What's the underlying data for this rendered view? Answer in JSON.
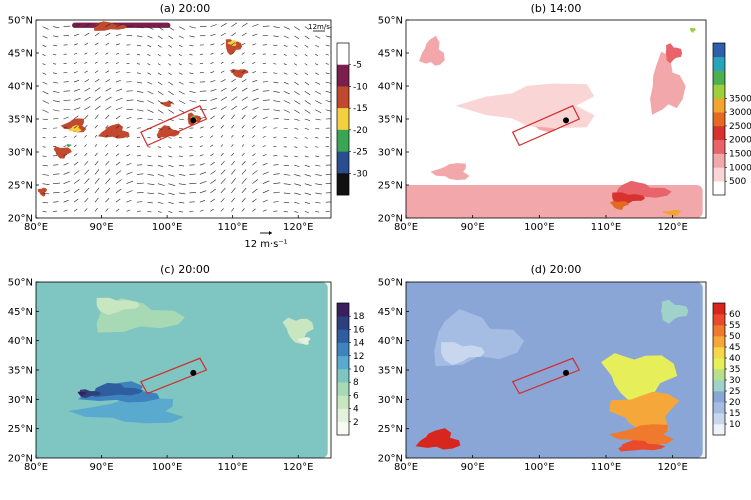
{
  "figure": {
    "panels": [
      {
        "id": "a",
        "title": "(a) 20:00",
        "type": "heatmap",
        "variable_display": "filled contours with wind vectors",
        "colorbar": {
          "ticks": [
            "-5",
            "-10",
            "-15",
            "-20",
            "-25",
            "-30"
          ],
          "colors": [
            "#ffffff",
            "#7a1f4b",
            "#c2492d",
            "#f4d03f",
            "#3aa655",
            "#2a4d8f",
            "#111111"
          ]
        },
        "reference_vector": {
          "label_in_plot": "12m/s",
          "label_below": "12 m·s⁻¹"
        }
      },
      {
        "id": "b",
        "title": "(b) 14:00",
        "type": "heatmap",
        "colorbar": {
          "ticks": [
            "500",
            "1000",
            "1500",
            "2000",
            "2500",
            "3000",
            "3500"
          ],
          "colors": [
            "#ffffff",
            "#f9d5d5",
            "#f2a7ab",
            "#e8636a",
            "#d8322f",
            "#e46a23",
            "#f2a52e",
            "#9dce3b",
            "#4caf50",
            "#29a3b8",
            "#2f5fa8"
          ]
        }
      },
      {
        "id": "c",
        "title": "(c) 20:00",
        "type": "heatmap",
        "colorbar": {
          "ticks": [
            "2",
            "4",
            "6",
            "8",
            "10",
            "12",
            "14",
            "16",
            "18"
          ],
          "colors": [
            "#f7fbf3",
            "#e3f2dc",
            "#c8e6c0",
            "#a7d9b5",
            "#7fc5c2",
            "#5aa9cf",
            "#3d84bf",
            "#2e5e9e",
            "#2e3f7d",
            "#3a1f5c"
          ]
        }
      },
      {
        "id": "d",
        "title": "(d) 20:00",
        "type": "heatmap",
        "colorbar": {
          "ticks": [
            "10",
            "15",
            "20",
            "25",
            "30",
            "35",
            "40",
            "45",
            "50",
            "55",
            "60"
          ],
          "colors": [
            "#eef3fa",
            "#c9d7ee",
            "#a6bde3",
            "#8aa6d6",
            "#9fd2c8",
            "#b8e08a",
            "#e6ee5a",
            "#f7d64a",
            "#f6a73a",
            "#ef7a2e",
            "#e84a2a",
            "#d8261f"
          ]
        }
      }
    ]
  },
  "chart_data": [
    {
      "type": "heatmap",
      "title": "(a) 20:00",
      "x_ticks": [
        "80°E",
        "90°E",
        "100°E",
        "110°E",
        "120°E"
      ],
      "y_ticks": [
        "20°N",
        "25°N",
        "30°N",
        "35°N",
        "40°N",
        "45°N",
        "50°N"
      ],
      "xlim": [
        80,
        125
      ],
      "ylim": [
        20,
        50
      ],
      "colorbar_values": [
        -5,
        -10,
        -15,
        -20,
        -25,
        -30
      ],
      "box": {
        "corners": [
          [
            96,
            33
          ],
          [
            105,
            37
          ],
          [
            106,
            35
          ],
          [
            97,
            31
          ]
        ]
      },
      "point": {
        "lon": 104,
        "lat": 34.8
      },
      "regions": [
        {
          "level": -5,
          "shape": "bar",
          "center": [
            93,
            49.2
          ],
          "extent": [
            15,
            0.8
          ]
        },
        {
          "level": -10,
          "shape": "blob",
          "center": [
            91,
            49
          ],
          "extent": [
            6,
            1.5
          ]
        },
        {
          "level": -10,
          "shape": "blob",
          "center": [
            110,
            46
          ],
          "extent": [
            3,
            2.5
          ]
        },
        {
          "level": -10,
          "shape": "blob",
          "center": [
            111,
            42
          ],
          "extent": [
            3,
            1.5
          ]
        },
        {
          "level": -10,
          "shape": "blob",
          "center": [
            100,
            37.3
          ],
          "extent": [
            2,
            1
          ]
        },
        {
          "level": -10,
          "shape": "blob",
          "center": [
            86,
            34
          ],
          "extent": [
            4,
            2.5
          ]
        },
        {
          "level": -10,
          "shape": "blob",
          "center": [
            92,
            33
          ],
          "extent": [
            5,
            2.5
          ]
        },
        {
          "level": -10,
          "shape": "blob",
          "center": [
            100,
            33
          ],
          "extent": [
            4,
            2
          ]
        },
        {
          "level": -10,
          "shape": "blob",
          "center": [
            104,
            35
          ],
          "extent": [
            2.5,
            2
          ]
        },
        {
          "level": -10,
          "shape": "blob",
          "center": [
            84,
            30
          ],
          "extent": [
            3,
            2
          ]
        },
        {
          "level": -10,
          "shape": "blob",
          "center": [
            81,
            24
          ],
          "extent": [
            1.5,
            1.5
          ]
        },
        {
          "level": -15,
          "shape": "blob",
          "center": [
            110,
            46.5
          ],
          "extent": [
            1.5,
            1
          ]
        },
        {
          "level": -15,
          "shape": "blob",
          "center": [
            86,
            33.5
          ],
          "extent": [
            2,
            1.2
          ]
        },
        {
          "level": -15,
          "shape": "blob",
          "center": [
            104,
            35
          ],
          "extent": [
            1.2,
            1
          ]
        },
        {
          "level": -20,
          "shape": "blob",
          "center": [
            104,
            35.2
          ],
          "extent": [
            0.6,
            0.5
          ]
        },
        {
          "level": -20,
          "shape": "blob",
          "center": [
            85,
            31
          ],
          "extent": [
            0.8,
            0.5
          ]
        }
      ]
    },
    {
      "type": "heatmap",
      "title": "(b) 14:00",
      "x_ticks": [
        "80°E",
        "90°E",
        "100°E",
        "110°E",
        "120°E"
      ],
      "y_ticks": [
        "20°N",
        "25°N",
        "30°N",
        "35°N",
        "40°N",
        "45°N",
        "50°N"
      ],
      "xlim": [
        80,
        125
      ],
      "ylim": [
        20,
        50
      ],
      "colorbar_values": [
        500,
        1000,
        1500,
        2000,
        2500,
        3000,
        3500
      ],
      "box": {
        "corners": [
          [
            96,
            33
          ],
          [
            105,
            37
          ],
          [
            106,
            35
          ],
          [
            97,
            31
          ]
        ]
      },
      "point": {
        "lon": 104,
        "lat": 34.8
      },
      "regions": [
        {
          "level": 1000,
          "shape": "band",
          "center": [
            102,
            22.5
          ],
          "extent": [
            45,
            5
          ]
        },
        {
          "level": 1500,
          "shape": "blob",
          "center": [
            115,
            24
          ],
          "extent": [
            10,
            3
          ]
        },
        {
          "level": 2000,
          "shape": "blob",
          "center": [
            113,
            23
          ],
          "extent": [
            6,
            2
          ]
        },
        {
          "level": 2500,
          "shape": "blob",
          "center": [
            112,
            22
          ],
          "extent": [
            3,
            1.5
          ]
        },
        {
          "level": 3000,
          "shape": "blob",
          "center": [
            120,
            20.8
          ],
          "extent": [
            3,
            1
          ]
        },
        {
          "level": 1000,
          "shape": "blob",
          "center": [
            87,
            27
          ],
          "extent": [
            6,
            3
          ]
        },
        {
          "level": 1000,
          "shape": "blob",
          "center": [
            84,
            45
          ],
          "extent": [
            4,
            5
          ]
        },
        {
          "level": 1000,
          "shape": "blob",
          "center": [
            119,
            40
          ],
          "extent": [
            6,
            10
          ]
        },
        {
          "level": 1500,
          "shape": "blob",
          "center": [
            120,
            45
          ],
          "extent": [
            3,
            3
          ]
        },
        {
          "level": 3500,
          "shape": "blob",
          "center": [
            123,
            48.5
          ],
          "extent": [
            1,
            0.8
          ]
        },
        {
          "level": 1000,
          "shape": "blob",
          "center": [
            101,
            34
          ],
          "extent": [
            5,
            2
          ]
        },
        {
          "level": 500,
          "shape": "blob",
          "center": [
            100,
            37
          ],
          "extent": [
            22,
            8
          ]
        }
      ]
    },
    {
      "type": "heatmap",
      "title": "(c) 20:00",
      "x_ticks": [
        "80°E",
        "90°E",
        "100°E",
        "110°E",
        "120°E"
      ],
      "y_ticks": [
        "20°N",
        "25°N",
        "30°N",
        "35°N",
        "40°N",
        "45°N",
        "50°N"
      ],
      "xlim": [
        80,
        125
      ],
      "ylim": [
        20,
        50
      ],
      "colorbar_values": [
        2,
        4,
        6,
        8,
        10,
        12,
        14,
        16,
        18
      ],
      "box": {
        "corners": [
          [
            96,
            33
          ],
          [
            105,
            37
          ],
          [
            106,
            35
          ],
          [
            97,
            31
          ]
        ]
      },
      "point": {
        "lon": 104,
        "lat": 34.5
      },
      "regions": [
        {
          "level": 8,
          "shape": "band",
          "center": [
            102,
            35
          ],
          "extent": [
            45,
            30
          ]
        },
        {
          "level": 6,
          "shape": "blob",
          "center": [
            95,
            44
          ],
          "extent": [
            16,
            6
          ]
        },
        {
          "level": 4,
          "shape": "blob",
          "center": [
            92,
            46
          ],
          "extent": [
            8,
            3
          ]
        },
        {
          "level": 4,
          "shape": "blob",
          "center": [
            120,
            42
          ],
          "extent": [
            5,
            5
          ]
        },
        {
          "level": 2,
          "shape": "blob",
          "center": [
            121,
            40
          ],
          "extent": [
            2,
            1.5
          ]
        },
        {
          "level": 10,
          "shape": "blob",
          "center": [
            95,
            28
          ],
          "extent": [
            18,
            5
          ]
        },
        {
          "level": 12,
          "shape": "blob",
          "center": [
            93,
            31
          ],
          "extent": [
            13,
            4
          ]
        },
        {
          "level": 14,
          "shape": "blob",
          "center": [
            92,
            31.5
          ],
          "extent": [
            9,
            2.5
          ]
        },
        {
          "level": 16,
          "shape": "blob",
          "center": [
            88,
            31
          ],
          "extent": [
            4,
            1.5
          ]
        },
        {
          "level": 18,
          "shape": "blob",
          "center": [
            87,
            31
          ],
          "extent": [
            1.5,
            0.8
          ]
        }
      ]
    },
    {
      "type": "heatmap",
      "title": "(d) 20:00",
      "x_ticks": [
        "80°E",
        "90°E",
        "100°E",
        "110°E",
        "120°E"
      ],
      "y_ticks": [
        "20°N",
        "25°N",
        "30°N",
        "35°N",
        "40°N",
        "45°N",
        "50°N"
      ],
      "xlim": [
        80,
        125
      ],
      "ylim": [
        20,
        50
      ],
      "colorbar_values": [
        10,
        15,
        20,
        25,
        30,
        35,
        40,
        45,
        50,
        55,
        60
      ],
      "box": {
        "corners": [
          [
            96,
            33
          ],
          [
            105,
            37
          ],
          [
            106,
            35
          ],
          [
            97,
            31
          ]
        ]
      },
      "point": {
        "lon": 104,
        "lat": 34.5
      },
      "regions": [
        {
          "level": 20,
          "shape": "band",
          "center": [
            102,
            35
          ],
          "extent": [
            45,
            30
          ]
        },
        {
          "level": 15,
          "shape": "blob",
          "center": [
            90,
            40
          ],
          "extent": [
            16,
            10
          ]
        },
        {
          "level": 10,
          "shape": "blob",
          "center": [
            88,
            38
          ],
          "extent": [
            8,
            4
          ]
        },
        {
          "level": 35,
          "shape": "blob",
          "center": [
            115,
            34
          ],
          "extent": [
            12,
            10
          ]
        },
        {
          "level": 45,
          "shape": "blob",
          "center": [
            116,
            28
          ],
          "extent": [
            11,
            8
          ]
        },
        {
          "level": 50,
          "shape": "blob",
          "center": [
            116,
            24
          ],
          "extent": [
            10,
            4
          ]
        },
        {
          "level": 60,
          "shape": "blob",
          "center": [
            85,
            23
          ],
          "extent": [
            7,
            4
          ]
        },
        {
          "level": 55,
          "shape": "blob",
          "center": [
            115,
            22
          ],
          "extent": [
            8,
            2
          ]
        },
        {
          "level": 25,
          "shape": "blob",
          "center": [
            120,
            45
          ],
          "extent": [
            5,
            4
          ]
        }
      ]
    }
  ]
}
